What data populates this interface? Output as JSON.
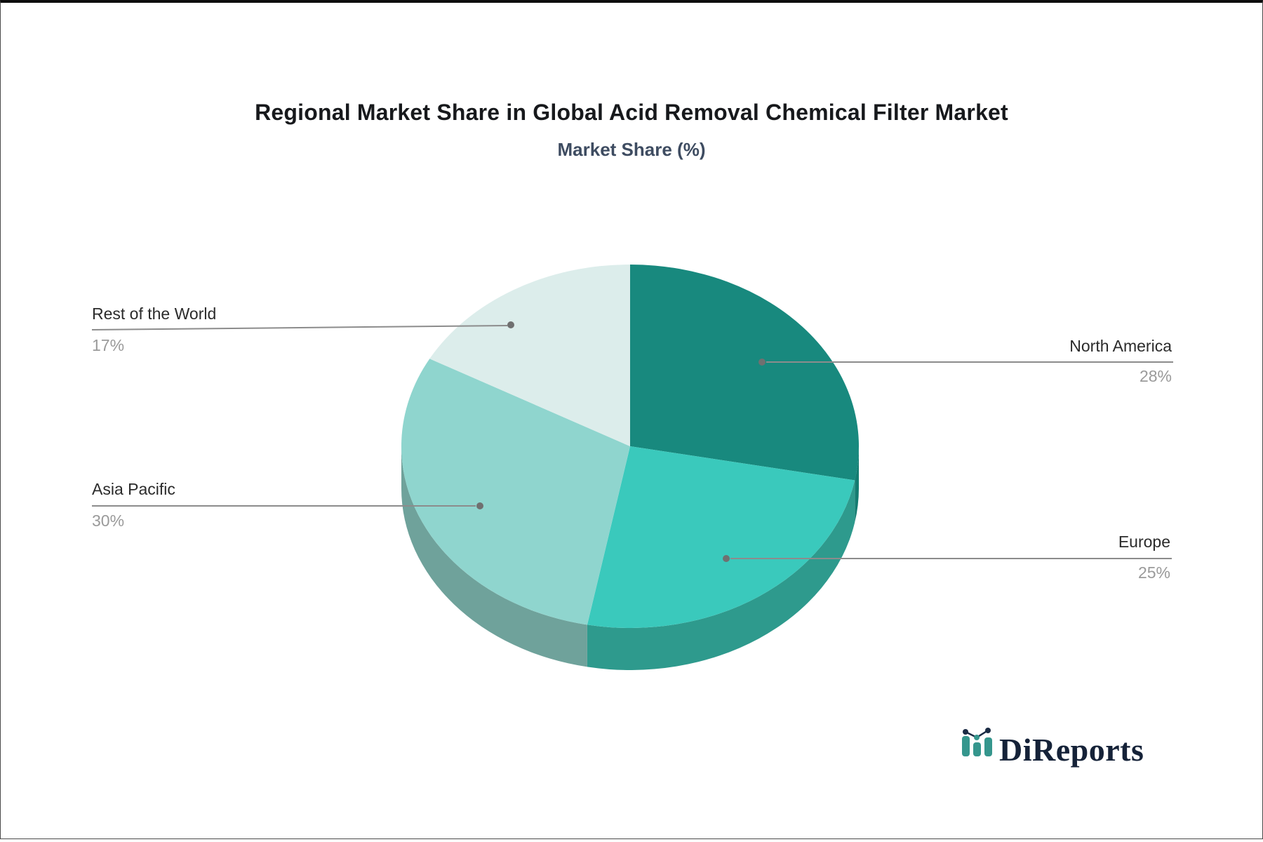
{
  "header": {
    "title": "Regional Market Share in Global Acid Removal Chemical Filter Market",
    "subtitle": "Market Share (%)"
  },
  "brand": {
    "name": "DiReports"
  },
  "styles": {
    "callout_line_color": "#8c8c8c",
    "callout_dot_color": "#707070",
    "logo_teal": "#35968d",
    "logo_navy": "#1b2b44"
  },
  "chart_data": {
    "type": "pie",
    "title": "Regional Market Share in Global Acid Removal Chemical Filter Market",
    "subtitle": "Market Share (%)",
    "unit": "%",
    "start_angle": "12-o'clock",
    "direction": "clockwise",
    "style": "3d-depth-ellipse",
    "slices": [
      {
        "label": "North America",
        "value": 28,
        "display": "28%",
        "color": "#18897e",
        "side_color": "#147c71"
      },
      {
        "label": "Europe",
        "value": 25,
        "display": "25%",
        "color": "#3ac9bc",
        "side_color": "#2e9a8d"
      },
      {
        "label": "Asia Pacific",
        "value": 30,
        "display": "30%",
        "color": "#8fd5ce",
        "side_color": "#6fa29b"
      },
      {
        "label": "Rest of the World",
        "value": 17,
        "display": "17%",
        "color": "#dcedeb"
      }
    ]
  }
}
